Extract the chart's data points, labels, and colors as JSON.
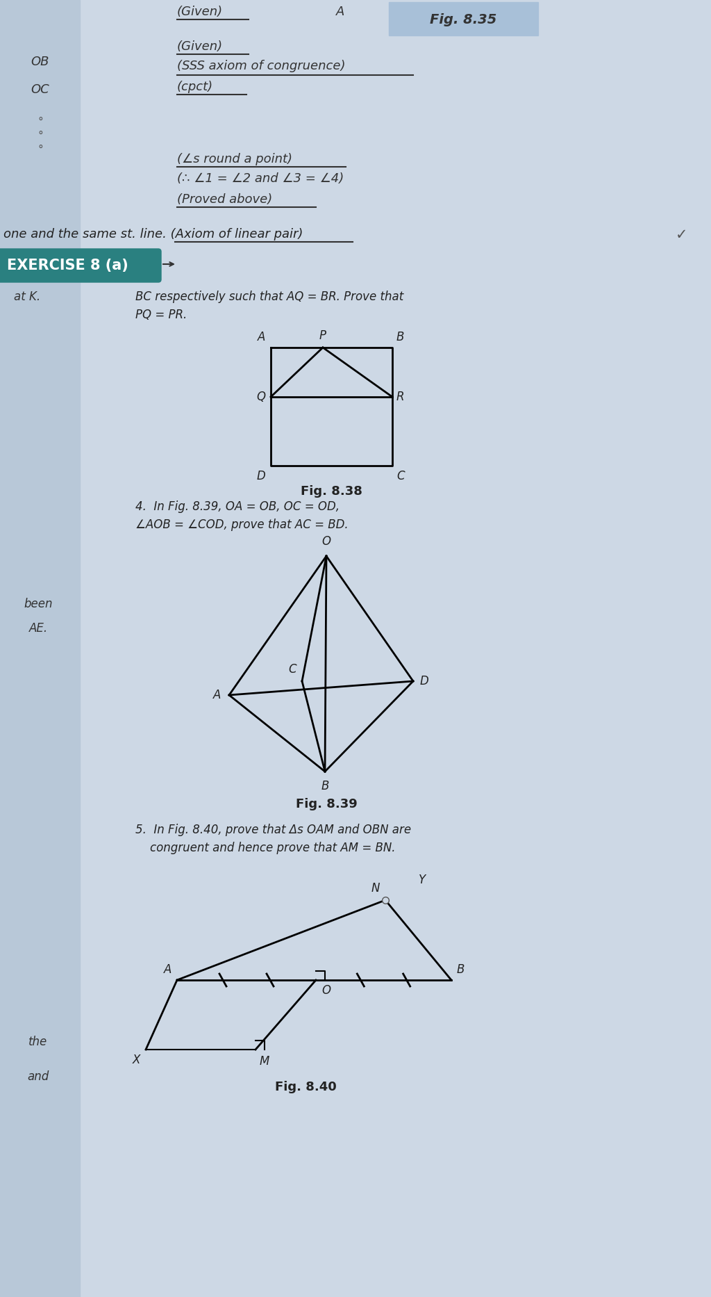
{
  "fig_label_top": "Fig. 8.35",
  "exercise_label": "EXERCISE 8 (a)",
  "prob3_text_line1": "BC respectively such that AQ = BR. Prove that",
  "prob3_text_line2": "PQ = PR.",
  "fig838_label": "Fig. 8.38",
  "prob4_line1": "4.  In Fig. 8.39, OA = OB, OC = OD,",
  "prob4_line2": "∠AOB = ∠COD, prove that AC = BD.",
  "fig839_label": "Fig. 8.39",
  "prob5_line1": "5.  In Fig. 8.40, prove that Δs OAM and OBN are",
  "prob5_line2": "    congruent and hence prove that AM = BN.",
  "fig840_label": "Fig. 8.40",
  "bg_main": "#cdd8e5",
  "bg_left": "#b8c8d8",
  "teal_color": "#2a8080",
  "text_dark": "#222222",
  "text_mid": "#333333"
}
